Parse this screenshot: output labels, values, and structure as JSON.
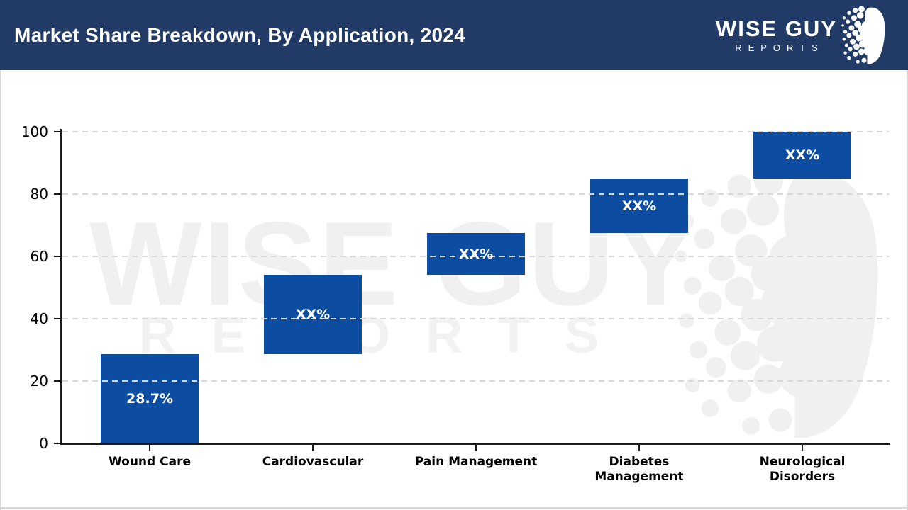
{
  "header": {
    "title": "Market Share Breakdown, By Application, 2024",
    "bg_color": "#213A66"
  },
  "brand": {
    "name": "WISE GUY",
    "reports": "REPORTS"
  },
  "watermark": {
    "line1": "WISE GUY",
    "line2": "REPORTS"
  },
  "chart_data": {
    "type": "bar",
    "subtype": "waterfall-cumulative",
    "title": "Market Share Breakdown, By Application, 2024",
    "categories": [
      "Wound Care",
      "Cardiovascular",
      "Pain Management",
      "Diabetes Management",
      "Neurological Disorders"
    ],
    "tick_labels": [
      [
        "Wound Care"
      ],
      [
        "Cardiovascular"
      ],
      [
        "Pain Management"
      ],
      [
        "Diabetes",
        "Management"
      ],
      [
        "Neurological",
        "Disorders"
      ]
    ],
    "bars": [
      {
        "category": "Wound Care",
        "label": "28.7%",
        "start": 0,
        "end": 28.7
      },
      {
        "category": "Cardiovascular",
        "label": "XX%",
        "start": 28.7,
        "end": 54
      },
      {
        "category": "Pain Management",
        "label": "XX%",
        "start": 54,
        "end": 67.5
      },
      {
        "category": "Diabetes Management",
        "label": "XX%",
        "start": 67.5,
        "end": 85
      },
      {
        "category": "Neurological Disorders",
        "label": "XX%",
        "start": 85,
        "end": 100
      }
    ],
    "ylim": [
      0,
      100
    ],
    "yticks": [
      0,
      20,
      40,
      60,
      80,
      100
    ],
    "grid": "horizontal dashed, drawn above bars",
    "legend": "none",
    "bar_color": "#0C4DA2",
    "bar_label_color": "#FFFFFF"
  }
}
